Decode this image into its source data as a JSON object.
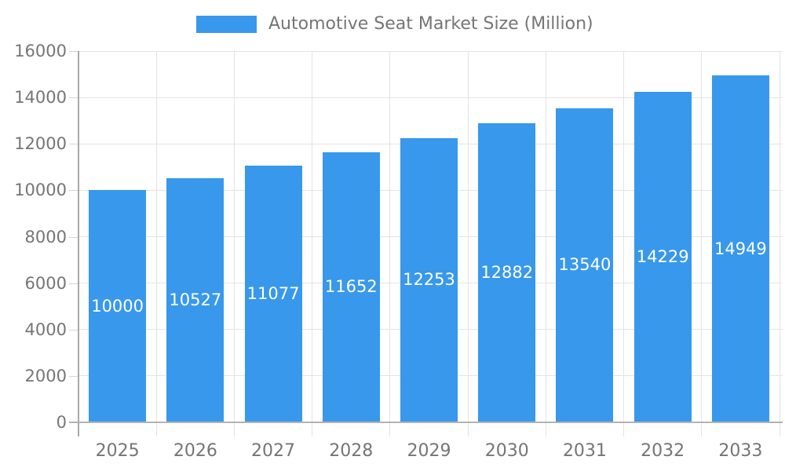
{
  "legend": {
    "label": "Automotive Seat Market Size (Million)"
  },
  "chart_data": {
    "type": "bar",
    "title": "Automotive Seat Market Size (Million)",
    "categories": [
      "2025",
      "2026",
      "2027",
      "2028",
      "2029",
      "2030",
      "2031",
      "2032",
      "2033"
    ],
    "series": [
      {
        "name": "Automotive Seat Market Size (Million)",
        "values": [
          10000,
          10527,
          11077,
          11652,
          12253,
          12882,
          13540,
          14229,
          14949
        ]
      }
    ],
    "bar_labels": [
      "10000",
      "10527",
      "11077",
      "11652",
      "12253",
      "12882",
      "13540",
      "14229",
      "14949"
    ],
    "xlabel": "",
    "ylabel": "",
    "ylim": [
      0,
      16000
    ],
    "ytick_step": 2000,
    "ytick_labels": [
      "0",
      "2000",
      "4000",
      "6000",
      "8000",
      "10000",
      "12000",
      "14000",
      "16000"
    ],
    "grid": "on",
    "legend_position": "top",
    "colors": {
      "bar": "#3898EC",
      "bar_label": "#FFFFFF",
      "axis_text": "#757575",
      "legend_text": "#757575",
      "grid_line": "#E3E3E3",
      "y_axis_line": "#A8A8A8",
      "x_axis_line": "#B3B3B3",
      "tick_mark": "#D5D5D5",
      "background": "#FFFFFF"
    }
  }
}
